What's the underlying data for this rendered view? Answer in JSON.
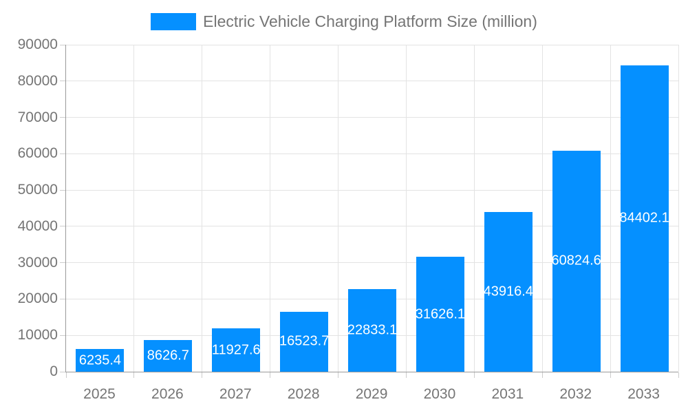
{
  "legend": {
    "label": "Electric Vehicle Charging Platform Size (million)"
  },
  "colors": {
    "bar": "#0590FF",
    "grid": "#E3E3E3",
    "axis": "#999999",
    "tick": "#CCCCCC",
    "text": "#757575",
    "bar_label": "#FFFFFF"
  },
  "chart_data": {
    "type": "bar",
    "title": "Electric Vehicle Charging Platform Size (million)",
    "categories": [
      "2025",
      "2026",
      "2027",
      "2028",
      "2029",
      "2030",
      "2031",
      "2032",
      "2033"
    ],
    "values": [
      6235.4,
      8626.7,
      11927.6,
      16523.7,
      22833.1,
      31626.1,
      43916.4,
      60824.6,
      84402.1
    ],
    "value_labels": [
      "6235.4",
      "8626.7",
      "11927.6",
      "16523.7",
      "22833.1",
      "31626.1",
      "43916.4",
      "60824.6",
      "84402.1"
    ],
    "xlabel": "",
    "ylabel": "",
    "ylim": [
      0,
      90000
    ],
    "ytick_step": 10000,
    "ytick_labels": [
      "0",
      "10000",
      "20000",
      "30000",
      "40000",
      "50000",
      "60000",
      "70000",
      "80000",
      "90000"
    ],
    "grid": true,
    "legend_position": "top",
    "bar_label_position": "inside-center"
  }
}
